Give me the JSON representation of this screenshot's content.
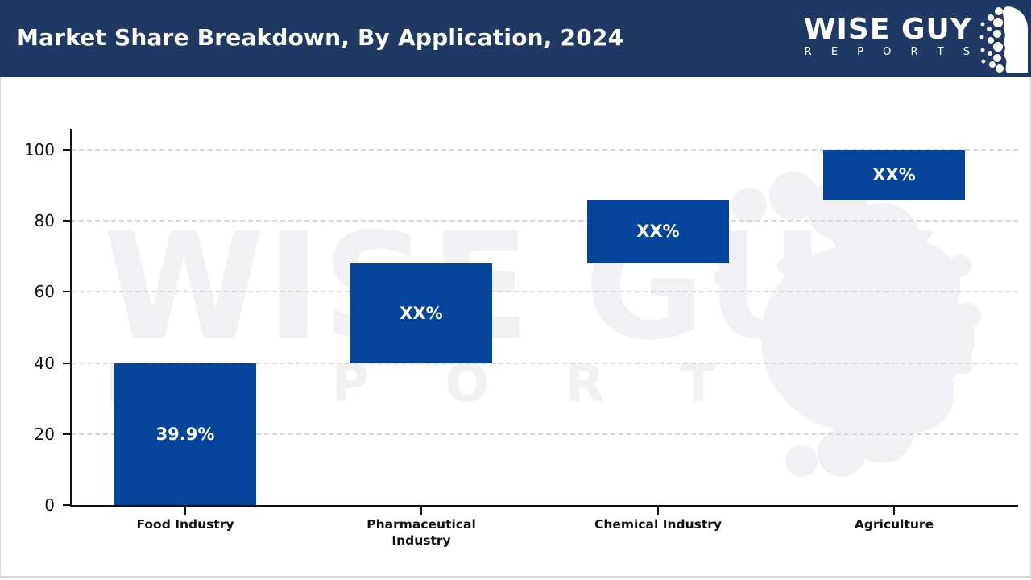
{
  "header": {
    "title": "Market Share Breakdown, By Application, 2024",
    "bg_color": "#1F3864",
    "logo": {
      "line1": "WISE GUY",
      "line2": "R E P O R T S"
    }
  },
  "watermark": {
    "line1": "WISE GUY",
    "line2": "R E P O R T S"
  },
  "colors": {
    "header_bg": "#1F3864",
    "bar_blue": "#05449B",
    "grid_gray": "#D9D9D9",
    "watermark_gray": "#F1F1F4"
  },
  "chart_data": {
    "type": "bar",
    "variant": "floating-stacked-segments",
    "title": "Market Share Breakdown, By Application, 2024",
    "categories": [
      "Food Industry",
      "Pharmaceutical Industry",
      "Chemical Industry",
      "Agriculture"
    ],
    "category_label_lines": [
      [
        "Food Industry"
      ],
      [
        "Pharmaceutical",
        "Industry"
      ],
      [
        "Chemical Industry"
      ],
      [
        "Agriculture"
      ]
    ],
    "segments": [
      {
        "category": "Food Industry",
        "from": 0,
        "to": 39.9,
        "label": "39.9%"
      },
      {
        "category": "Pharmaceutical Industry",
        "from": 39.9,
        "to": 68,
        "label": "XX%"
      },
      {
        "category": "Chemical Industry",
        "from": 68,
        "to": 86,
        "label": "XX%"
      },
      {
        "category": "Agriculture",
        "from": 86,
        "to": 100,
        "label": "XX%"
      }
    ],
    "xlabel": "",
    "ylabel": "",
    "ylim": [
      0,
      100
    ],
    "yticks": [
      0,
      20,
      40,
      60,
      80,
      100
    ],
    "bar_color": "#05449B",
    "grid": {
      "horizontal": true,
      "style": "dashed",
      "color": "#D9D9D9"
    },
    "legend": null
  }
}
